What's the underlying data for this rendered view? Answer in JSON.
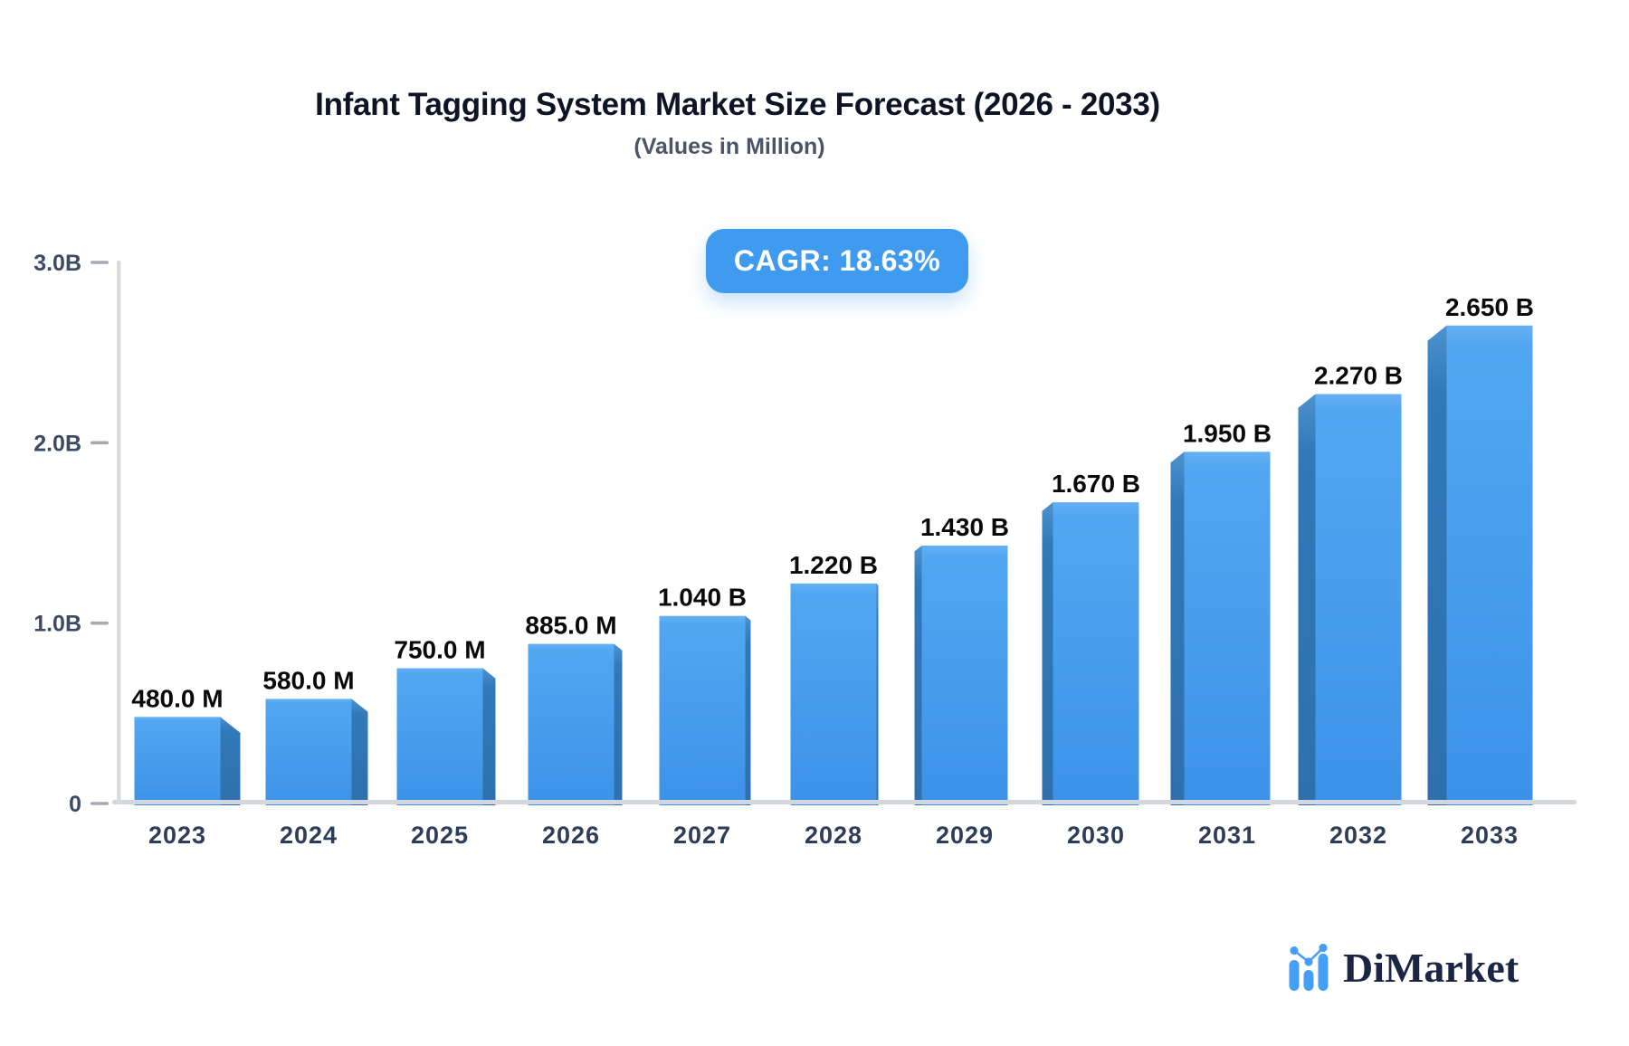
{
  "header": {
    "title": "Infant Tagging System Market Size Forecast (2026 - 2033)",
    "subtitle": "(Values in Million)",
    "cagr_label": "CAGR: 18.63%"
  },
  "chart_data": {
    "type": "bar",
    "title": "Infant Tagging System Market Size Forecast (2026 - 2033)",
    "subtitle": "(Values in Million)",
    "cagr_pct": 18.63,
    "categories": [
      "2023",
      "2024",
      "2025",
      "2026",
      "2027",
      "2028",
      "2029",
      "2030",
      "2031",
      "2032",
      "2033"
    ],
    "values_millions": [
      480,
      580,
      750,
      885,
      1040,
      1220,
      1430,
      1670,
      1950,
      2270,
      2650
    ],
    "value_labels": [
      "480.0 M",
      "580.0 M",
      "750.0 M",
      "885.0 M",
      "1.040 B",
      "1.220 B",
      "1.430 B",
      "1.670 B",
      "1.950 B",
      "2.270 B",
      "2.650 B"
    ],
    "y_ticks": [
      {
        "value": 3000,
        "label": "3.0B"
      },
      {
        "value": 2000,
        "label": "2.0B"
      },
      {
        "value": 1000,
        "label": "1.0B"
      },
      {
        "value": 0,
        "label": "0"
      }
    ],
    "ylim": [
      0,
      3000
    ],
    "xlabel": "",
    "ylabel": "",
    "grid": false,
    "legend": false
  },
  "footer": {
    "brand": "DiMarket"
  },
  "colors": {
    "bar_face_top": "#65b0f4",
    "bar_face_mid": "#52a7f1",
    "bar_face_bottom": "#3c92e8",
    "bar_side_top": "#4c92ce",
    "bar_side_mid": "#3179b9",
    "bar_side_bottom": "#2e70ad",
    "badge_bg": "#3e9bf0",
    "badge_text": "#ffffff",
    "baseline": "#d3d6dc",
    "axis_line": "#d9dbe1",
    "tick_dash": "#a6abb3",
    "tick_text": "#3c4a63",
    "category_text": "#2e3d58",
    "value_text": "#0a0a0a",
    "title_text": "#0d1424",
    "subtitle_text": "#4a5568",
    "brand_text": "#1b2544",
    "brand_icon": "#45a0f5"
  }
}
